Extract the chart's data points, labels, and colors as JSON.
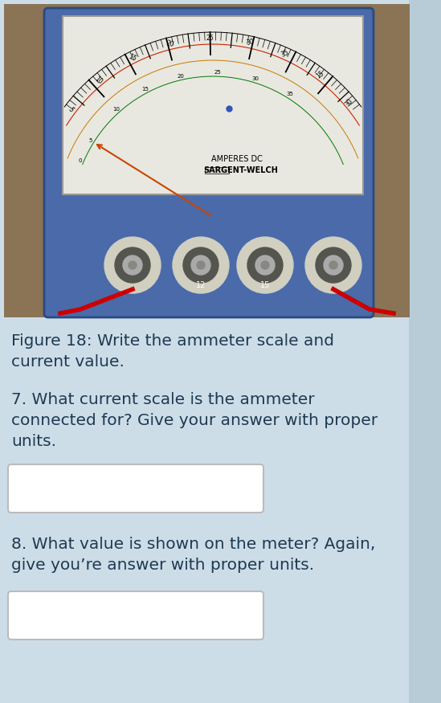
{
  "background_color": "#cddde8",
  "right_panel_color": "#b8ccd8",
  "figure_caption_line1": "Figure 18: Write the ammeter scale and",
  "figure_caption_line2": "current value.",
  "question7_line1": "7. What current scale is the ammeter",
  "question7_line2": "connected for? Give your answer with proper",
  "question7_line3": "units.",
  "question8_line1": "8. What value is shown on the meter? Again,",
  "question8_line2": "give you’re answer with proper units.",
  "box_color": "#ffffff",
  "box_border_color": "#bbbbbb",
  "text_color": "#1e3a52",
  "font_size": 14.5,
  "photo_bg_wood": "#8b7355",
  "photo_bg_light": "#c8b89a",
  "meter_blue": "#4a6aaa",
  "meter_face": "#e8e8e0",
  "photo_border": "#cce0ee"
}
